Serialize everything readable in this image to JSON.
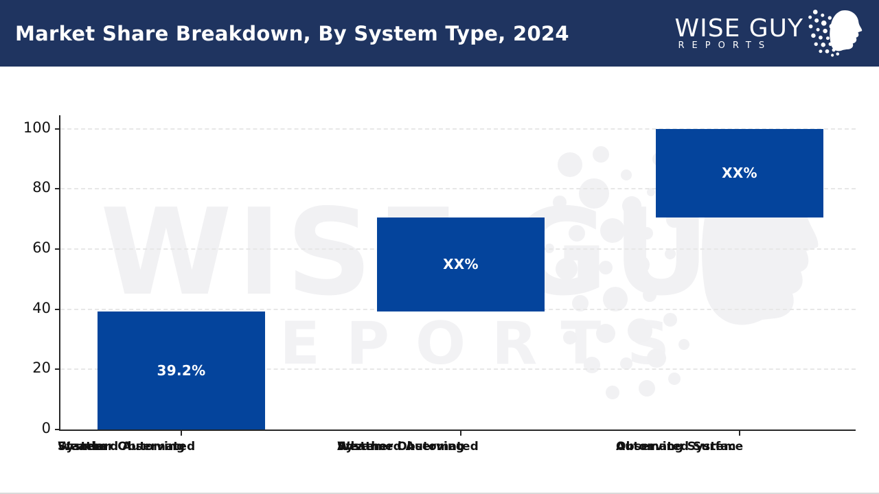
{
  "header": {
    "title": "Market Share Breakdown, By System Type, 2024",
    "bg_color": "#1F3460",
    "logo": {
      "name": "Wise Guy Reports",
      "line1": "WISE GUY",
      "line2": "REPORTS"
    }
  },
  "watermark": {
    "line1": "WISE GUY",
    "line2": "REPORTS",
    "color": "#F1F1F3"
  },
  "chart_data": {
    "type": "bar",
    "subtype": "floating-waterfall",
    "title": "Market Share Breakdown, By System Type, 2024",
    "categories": [
      "Standard Automated\nWeather Observing\nSystem",
      "Advanced Automated\nWeather Observing\nSystem",
      "Automated Surface\nObserving System"
    ],
    "series": [
      {
        "name": "Market Share %",
        "segments": [
          {
            "start": 0,
            "end": 39.2,
            "label": "39.2%"
          },
          {
            "start": 39.2,
            "end": 70.6,
            "label": "XX%"
          },
          {
            "start": 70.6,
            "end": 100,
            "label": "XX%"
          }
        ]
      }
    ],
    "y_ticks": [
      0,
      20,
      40,
      60,
      80,
      100
    ],
    "ylim": [
      0,
      100
    ],
    "xlabel": "",
    "ylabel": "",
    "grid": "horizontal-dashed",
    "legend": "none",
    "colors": {
      "bar": "#04449C",
      "bar_label": "#FFFFFF",
      "grid": "#E7E7E7",
      "axis": "#262626",
      "tick_label": "#111111",
      "category_label": "#111111",
      "watermark": "#F1F1F3"
    }
  }
}
